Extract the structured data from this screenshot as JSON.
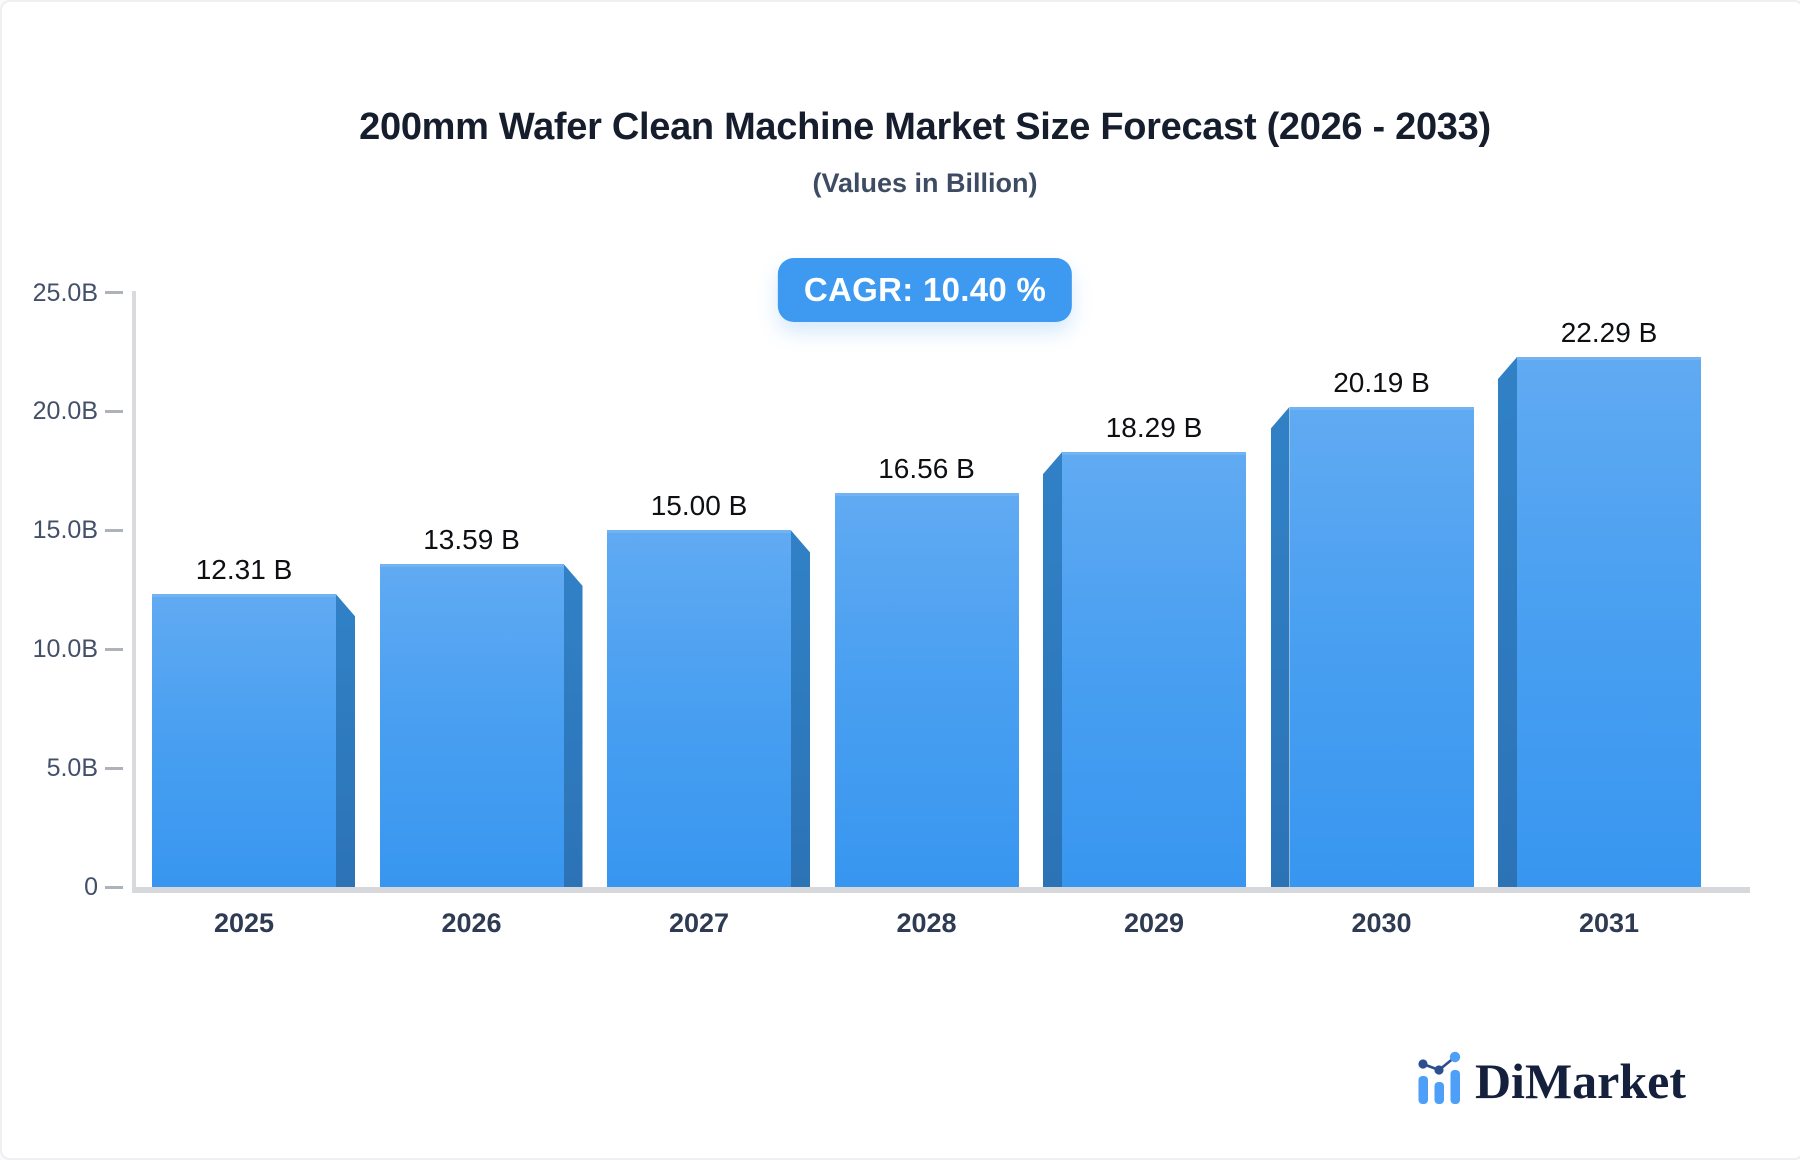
{
  "header": {
    "title": "200mm Wafer Clean Machine Market Size Forecast (2026 - 2033)",
    "subtitle": "(Values in Billion)",
    "cagr_label": "CAGR: 10.40 %"
  },
  "chart_data": {
    "type": "bar",
    "title": "200mm Wafer Clean Machine Market Size Forecast (2026 - 2033)",
    "subtitle": "(Values in Billion)",
    "cagr": "10.40%",
    "categories": [
      "2025",
      "2026",
      "2027",
      "2028",
      "2029",
      "2030",
      "2031"
    ],
    "values": [
      12.31,
      13.59,
      15.0,
      16.56,
      18.29,
      20.19,
      22.29
    ],
    "value_labels": [
      "12.31 B",
      "13.59 B",
      "15.00 B",
      "16.56 B",
      "18.29 B",
      "20.19 B",
      "22.29 B"
    ],
    "xlabel": "",
    "ylabel": "",
    "ylim": [
      0,
      25
    ],
    "y_ticks": [
      {
        "label": "25.0B",
        "value": 25
      },
      {
        "label": "20.0B",
        "value": 20
      },
      {
        "label": "15.0B",
        "value": 15
      },
      {
        "label": "10.0B",
        "value": 10
      },
      {
        "label": "5.0B",
        "value": 5
      },
      {
        "label": "0",
        "value": 0
      }
    ],
    "grid": false,
    "legend": false,
    "bar_style": "3d-beveled",
    "colors": {
      "bar_top": "#60aaf2",
      "bar_bottom": "#3896f0",
      "bar_side": "#2c73b6",
      "badge_background": "#3e9af0",
      "axis_line": "#d9dade",
      "tick_text": "#44506a",
      "category_text": "#2e3b52",
      "title_text": "#161e2e"
    }
  },
  "branding": {
    "logo_text": "DiMarket",
    "logo_icon": "mini-bar-chart-icon",
    "logo_icon_color": "#4d9ff7",
    "logo_text_color": "#14203c"
  }
}
